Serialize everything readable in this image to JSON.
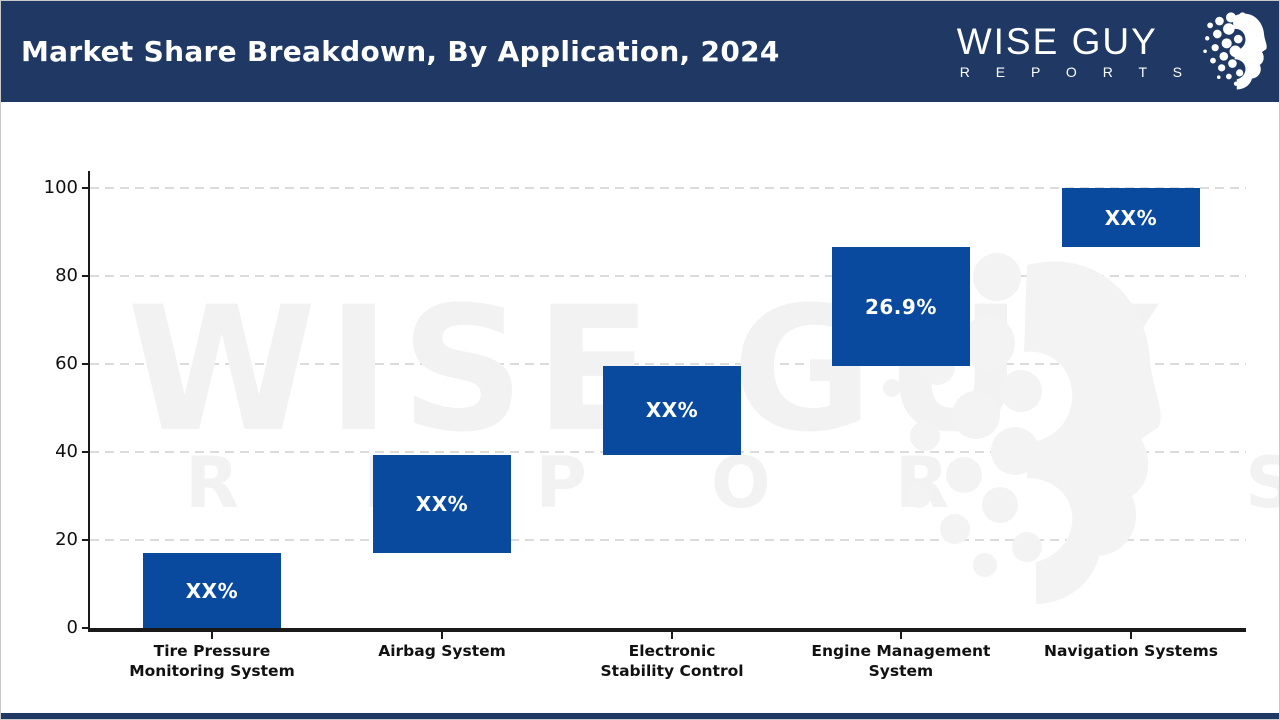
{
  "header": {
    "title": "Market Share Breakdown, By Application, 2024",
    "logo": {
      "line1": "WISE GUY",
      "line2": "REPORTS"
    }
  },
  "watermark": {
    "line1": "WISE GUY",
    "line2": "REPORTS"
  },
  "colors": {
    "header_bg": "#1f3864",
    "footer_bg": "#1f3864",
    "bar": "#0a4a9e",
    "bar_label": "#ffffff",
    "gridline": "#dcdcdc",
    "axis": "#1a1a1a",
    "watermark": "#f2f2f2"
  },
  "chart_data": {
    "type": "bar",
    "subtype": "waterfall",
    "title": "Market Share Breakdown, By Application, 2024",
    "xlabel": "",
    "ylabel": "",
    "ylim": [
      0,
      100
    ],
    "yticks": [
      0,
      20,
      40,
      60,
      80,
      100
    ],
    "grid": "horizontal-dashed",
    "legend": "none",
    "categories": [
      "Tire Pressure\nMonitoring System",
      "Airbag System",
      "Electronic\nStability Control",
      "Engine Management\nSystem",
      "Navigation Systems"
    ],
    "segments": [
      {
        "category": "Tire Pressure Monitoring System",
        "start": 0,
        "end": 17.0,
        "value": 17.0,
        "label": "XX%"
      },
      {
        "category": "Airbag System",
        "start": 17.0,
        "end": 39.3,
        "value": 22.3,
        "label": "XX%"
      },
      {
        "category": "Electronic Stability Control",
        "start": 39.3,
        "end": 59.6,
        "value": 20.3,
        "label": "XX%"
      },
      {
        "category": "Engine Management System",
        "start": 59.6,
        "end": 86.5,
        "value": 26.9,
        "label": "26.9%"
      },
      {
        "category": "Navigation Systems",
        "start": 86.5,
        "end": 100.0,
        "value": 13.5,
        "label": "XX%"
      }
    ]
  }
}
